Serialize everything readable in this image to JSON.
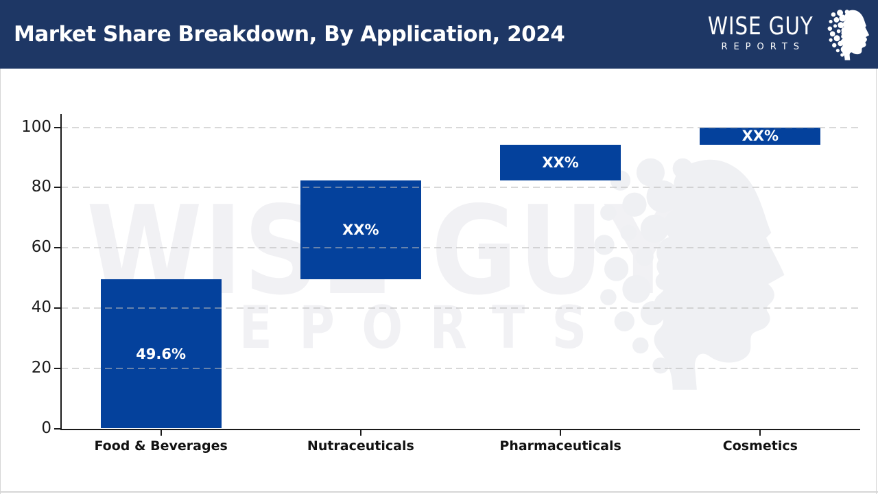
{
  "header": {
    "title": "Market Share Breakdown, By Application, 2024",
    "logo": {
      "line1": "WISE GUY",
      "line2": "REPORTS"
    }
  },
  "watermark": {
    "line1": "WISE GUY",
    "line2": "REPORTS"
  },
  "colors": {
    "header_bg": "#1e3765",
    "bar": "#04419c",
    "bar_label": "#ffffff",
    "grid": "#d9d9d9",
    "axis": "#1a1a1a",
    "watermark": "#f1f1f4"
  },
  "chart_data": {
    "type": "bar",
    "subtype": "waterfall-stacked-percent",
    "title": "Market Share Breakdown, By Application, 2024",
    "categories": [
      "Food & Beverages",
      "Nutraceuticals",
      "Pharmaceuticals",
      "Cosmetics"
    ],
    "segments": [
      {
        "category": "Food & Beverages",
        "start": 0,
        "end": 49.6,
        "label": "49.6%"
      },
      {
        "category": "Nutraceuticals",
        "start": 49.6,
        "end": 82.3,
        "label": "XX%"
      },
      {
        "category": "Pharmaceuticals",
        "start": 82.3,
        "end": 94.1,
        "label": "XX%"
      },
      {
        "category": "Cosmetics",
        "start": 94.1,
        "end": 100,
        "label": "XX%"
      }
    ],
    "xlabel": "",
    "ylabel": "",
    "ylim": [
      0,
      100
    ],
    "yticks": [
      0,
      20,
      40,
      60,
      80,
      100
    ],
    "grid": "horizontal-dashed",
    "legend": "none",
    "bar_color": "#04419c"
  }
}
